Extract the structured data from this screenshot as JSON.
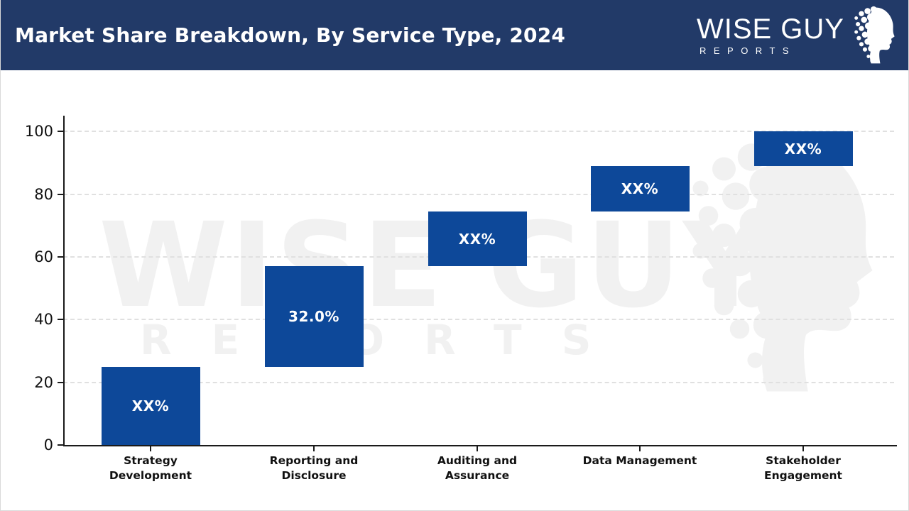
{
  "header": {
    "title": "Market Share Breakdown, By Service Type, 2024",
    "background_color": "#223a68",
    "logo": {
      "line1": "WISE GUY",
      "line2": "REPORTS"
    }
  },
  "watermark": {
    "line1": "WISE GUY",
    "line2": "REPORTS"
  },
  "chart_data": {
    "type": "bar",
    "subtype": "waterfall",
    "title": "Market Share Breakdown, By Service Type, 2024",
    "xlabel": "",
    "ylabel": "",
    "ylim": [
      0,
      105
    ],
    "yticks": [
      0,
      20,
      40,
      60,
      80,
      100
    ],
    "grid": "horizontal-dashed",
    "legend": "none",
    "bar_color": "#0d4899",
    "bar_label_color": "#ffffff",
    "categories": [
      "Strategy Development",
      "Reporting and Disclosure",
      "Auditing and Assurance",
      "Data Management",
      "Stakeholder Engagement"
    ],
    "segments": [
      {
        "category": "Strategy Development",
        "label_lines": [
          "Strategy",
          "Development"
        ],
        "start": 0,
        "end": 25,
        "value": 25,
        "label": "XX%"
      },
      {
        "category": "Reporting and Disclosure",
        "label_lines": [
          "Reporting and",
          "Disclosure"
        ],
        "start": 25,
        "end": 57,
        "value": 32,
        "label": "32.0%"
      },
      {
        "category": "Auditing and Assurance",
        "label_lines": [
          "Auditing and",
          "Assurance"
        ],
        "start": 57,
        "end": 74.5,
        "value": 17.5,
        "label": "XX%"
      },
      {
        "category": "Data Management",
        "label_lines": [
          "Data Management"
        ],
        "start": 74.5,
        "end": 89,
        "value": 14.5,
        "label": "XX%"
      },
      {
        "category": "Stakeholder Engagement",
        "label_lines": [
          "Stakeholder",
          "Engagement"
        ],
        "start": 89,
        "end": 100,
        "value": 11,
        "label": "XX%"
      }
    ]
  }
}
